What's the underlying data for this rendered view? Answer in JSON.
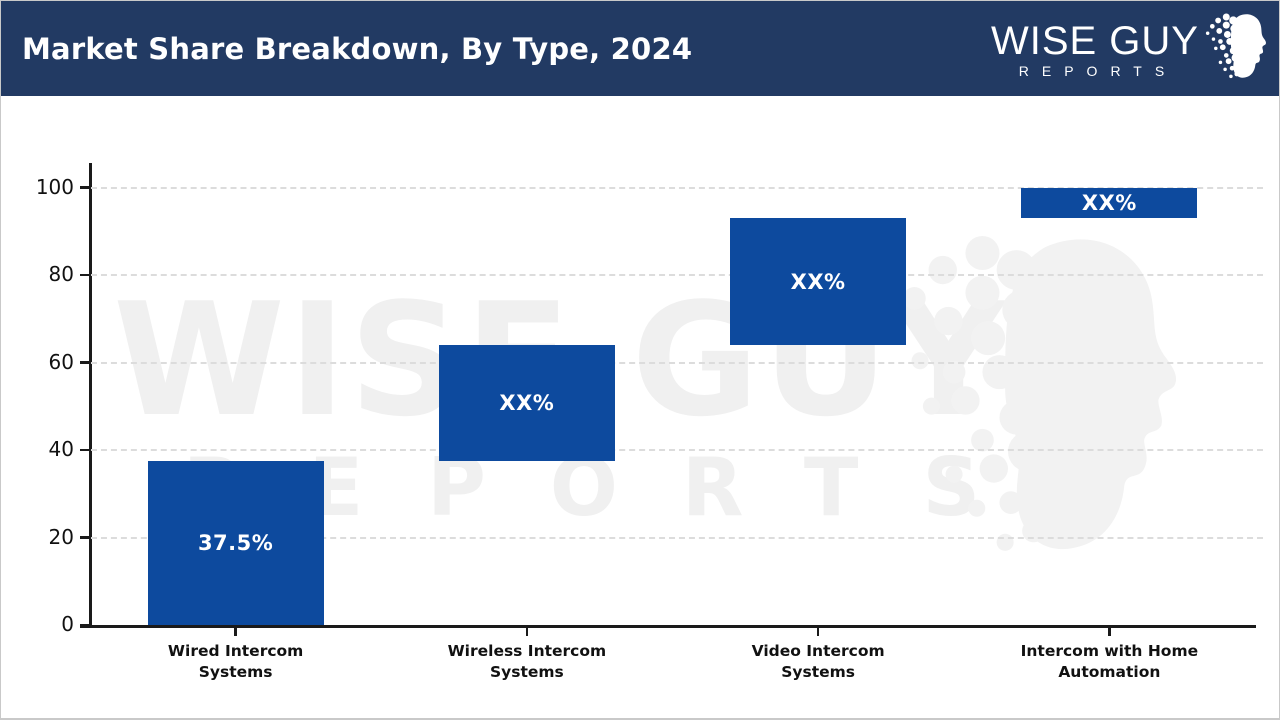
{
  "header": {
    "title": "Market Share Breakdown, By Type, 2024",
    "logo": {
      "line1": "WISE GUY",
      "line2": "REPORTS"
    }
  },
  "watermark": {
    "line1": "WISE GUY",
    "line2": "REPORTS"
  },
  "colors": {
    "header_bg": "#223a63",
    "bar": "#0d4a9e",
    "gridline": "#dcdcdc",
    "watermark": "#f0f0f0"
  },
  "chart_data": {
    "type": "waterfall",
    "title": "Market Share Breakdown, By Type, 2024",
    "categories": [
      "Wired Intercom Systems",
      "Wireless Intercom Systems",
      "Video Intercom Systems",
      "Intercom with Home Automation"
    ],
    "segments": [
      {
        "label": "37.5%",
        "start": 0,
        "end": 37.5
      },
      {
        "label": "XX%",
        "start": 37.5,
        "end": 64
      },
      {
        "label": "XX%",
        "start": 64,
        "end": 93
      },
      {
        "label": "XX%",
        "start": 93,
        "end": 100
      }
    ],
    "ylim": [
      0,
      100
    ],
    "yticks": [
      0,
      20,
      40,
      60,
      80,
      100
    ],
    "xlabel": "",
    "ylabel": "",
    "grid": "horizontal-dashed",
    "legend": "none",
    "bar_color": "#0d4a9e"
  }
}
